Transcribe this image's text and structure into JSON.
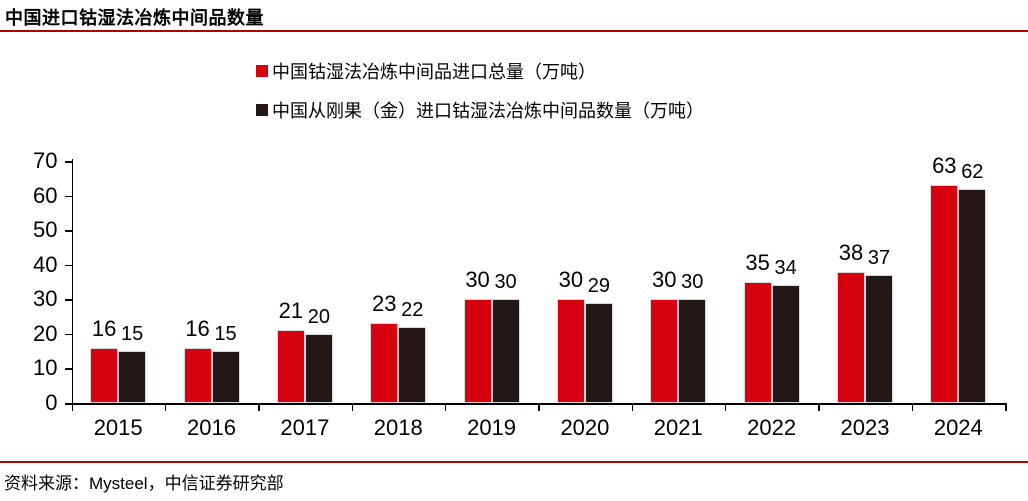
{
  "header": {
    "title": "中国进口钴湿法冶炼中间品数量"
  },
  "footer": {
    "source_text": "资料来源：Mysteel，中信证券研究部"
  },
  "colors": {
    "series_red": "#d7000f",
    "series_black": "#231815",
    "rule_red": "#b30000",
    "axis": "#000000",
    "bar_border": "#d9d9d9"
  },
  "chart_data": {
    "type": "bar",
    "title": "中国进口钴湿法冶炼中间品数量",
    "categories": [
      "2015",
      "2016",
      "2017",
      "2018",
      "2019",
      "2020",
      "2021",
      "2022",
      "2023",
      "2024"
    ],
    "series": [
      {
        "name": "中国钴湿法冶炼中间品进口总量（万吨）",
        "color": "#d7000f",
        "values": [
          16,
          16,
          21,
          23,
          30,
          30,
          30,
          35,
          38,
          63
        ]
      },
      {
        "name": "中国从刚果（金）进口钴湿法冶炼中间品数量（万吨）",
        "color": "#231815",
        "values": [
          15,
          15,
          20,
          22,
          30,
          29,
          30,
          34,
          37,
          62
        ]
      }
    ],
    "xlabel": "",
    "ylabel": "",
    "ylim": [
      0,
      70
    ],
    "y_ticks": [
      0,
      10,
      20,
      30,
      40,
      50,
      60,
      70
    ],
    "grid": false,
    "legend_position": "top",
    "data_labels": true
  }
}
